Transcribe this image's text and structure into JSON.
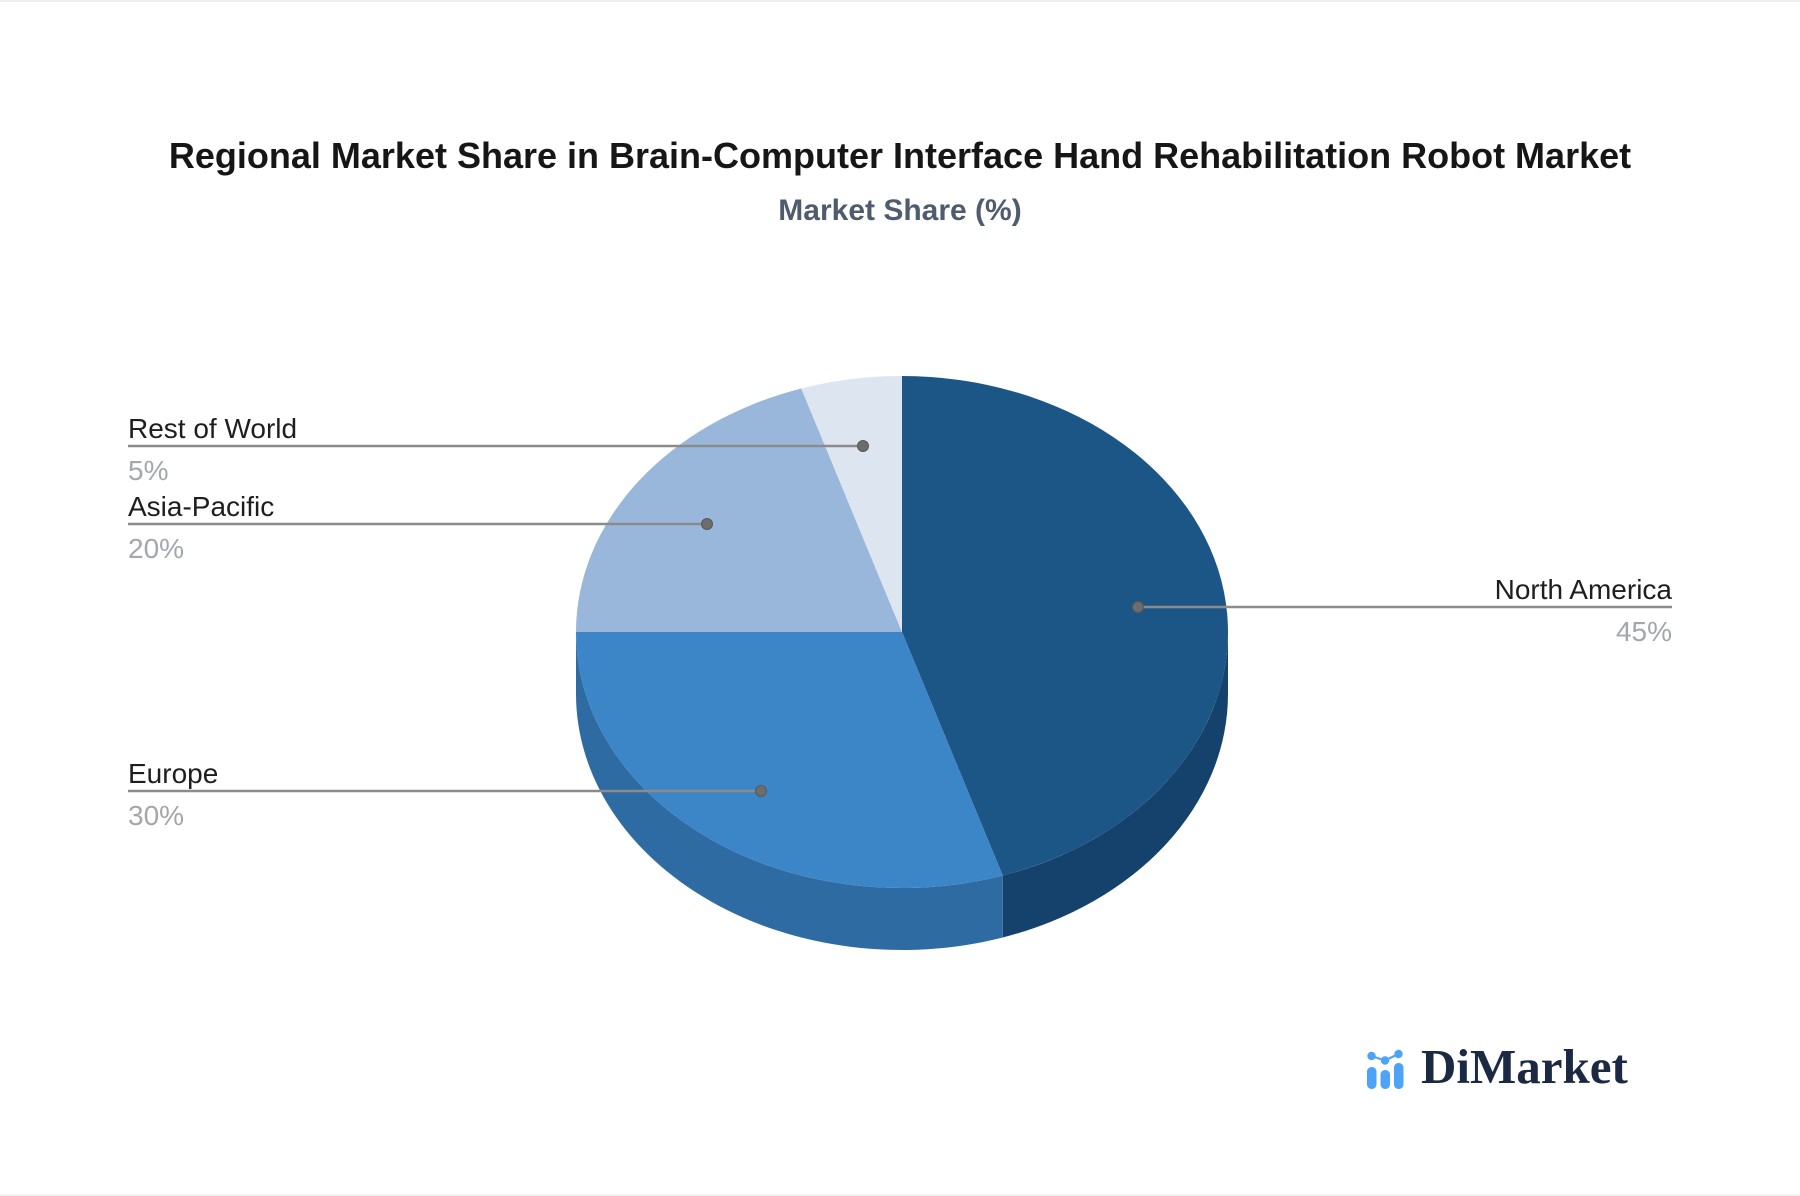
{
  "title": "Regional Market Share in Brain-Computer Interface Hand Rehabilitation Robot Market",
  "subtitle": "Market Share (%)",
  "brand": {
    "name": "DiMarket",
    "icon": "bar-chart-logo-icon",
    "icon_color": "#4da3f7",
    "text_color": "#1b2a42"
  },
  "chart_data": {
    "type": "pie",
    "title": "Regional Market Share in Brain-Computer Interface Hand Rehabilitation Robot Market",
    "subtitle": "Market Share (%)",
    "unit": "%",
    "start_angle_deg": 90,
    "direction": "clockwise",
    "effect": "3d-depth",
    "legend_position": "callout-leader-lines",
    "slices": [
      {
        "label": "North America",
        "value": 45,
        "pct_label": "45%",
        "color": "#1c5686",
        "depth_color": "#15426d"
      },
      {
        "label": "Europe",
        "value": 30,
        "pct_label": "30%",
        "color": "#3c86c8",
        "depth_color": "#2f6ba3"
      },
      {
        "label": "Asia-Pacific",
        "value": 20,
        "pct_label": "20%",
        "color": "#99b7db"
      },
      {
        "label": "Rest of World",
        "value": 5,
        "pct_label": "5%",
        "color": "#dde5f0"
      }
    ],
    "leader_line_color": "#8b8b8b",
    "leader_dot_color": "#6d6d6d",
    "label_color": "#1e1e1e",
    "value_color": "#a3a7ad"
  }
}
